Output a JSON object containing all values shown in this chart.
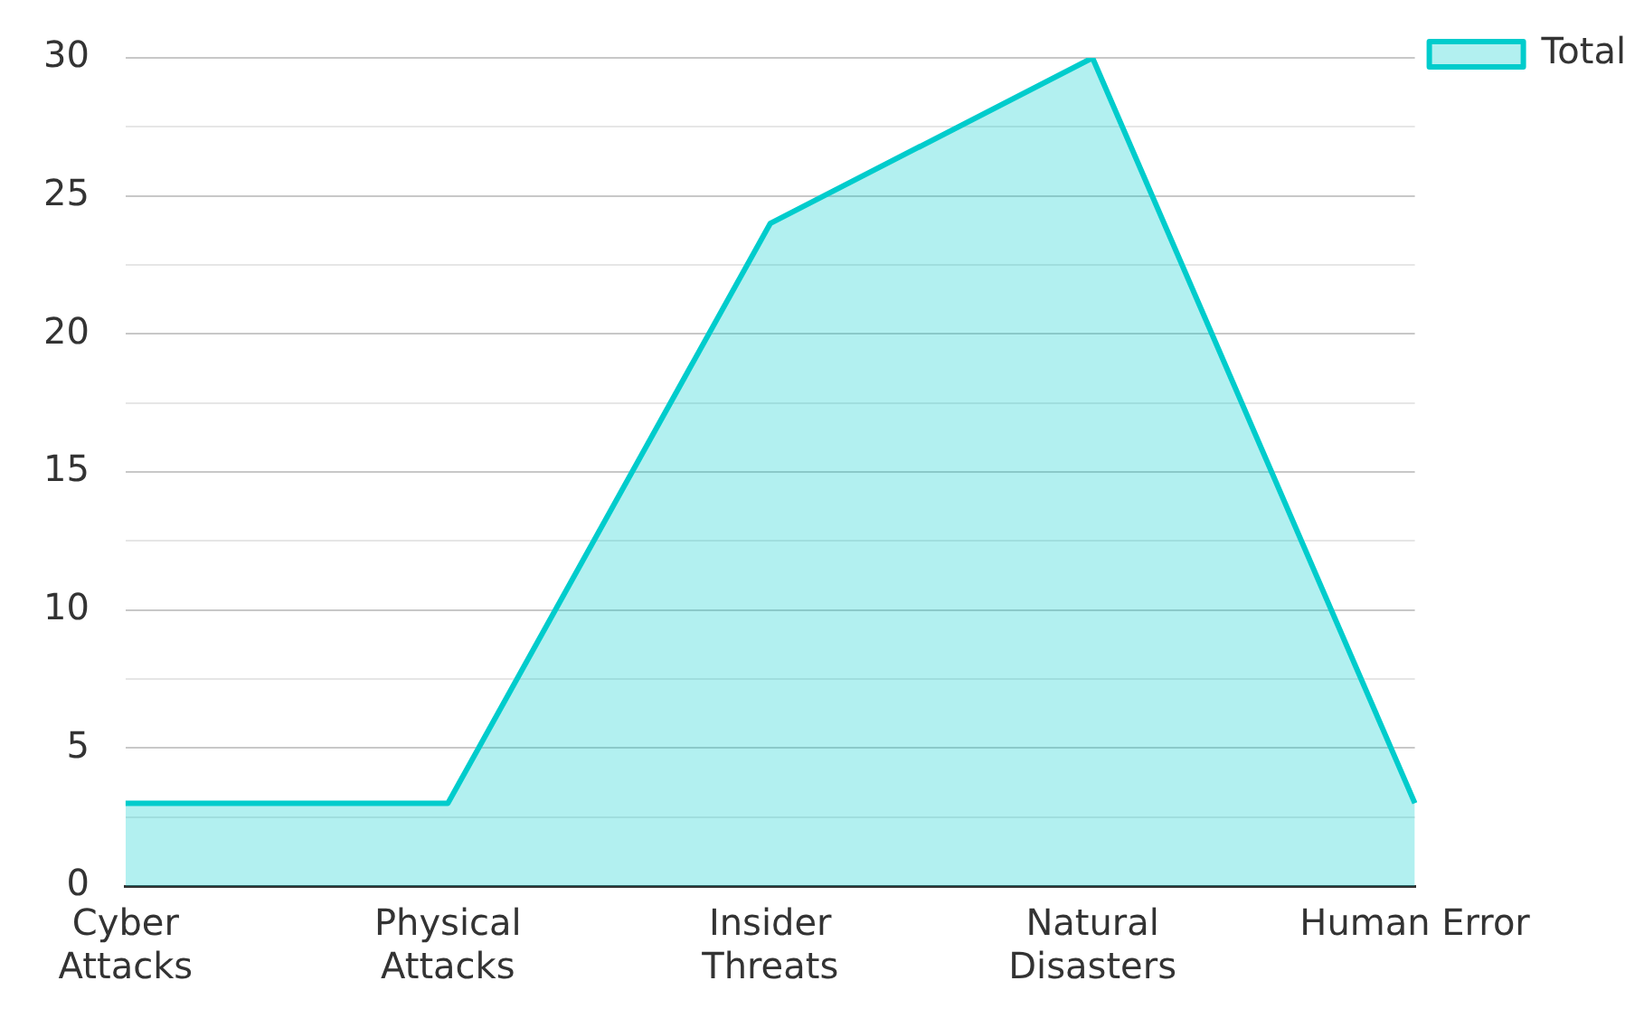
{
  "chart_data": {
    "type": "area",
    "categories": [
      "Cyber Attacks",
      "Physical Attacks",
      "Insider Threats",
      "Natural Disasters",
      "Human Error"
    ],
    "series": [
      {
        "name": "Total",
        "color": "#00cccc",
        "values": [
          3,
          3,
          24,
          30,
          3
        ]
      }
    ],
    "ylim": [
      0,
      30
    ],
    "yticks": [
      0,
      {
        "value": 2.5,
        "label": null
      },
      5,
      {
        "value": 7.5,
        "label": null
      },
      10,
      {
        "value": 12.5,
        "label": null
      },
      15,
      {
        "value": 17.5,
        "label": null
      },
      20,
      {
        "value": 22.5,
        "label": null
      },
      25,
      {
        "value": 27.5,
        "label": null
      },
      30
    ],
    "grid": "y",
    "legend": "top right",
    "marker": "none"
  }
}
